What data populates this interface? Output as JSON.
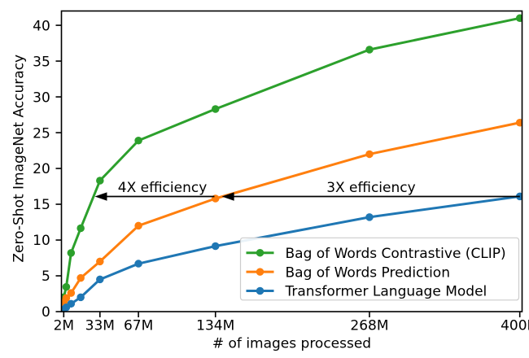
{
  "figure": {
    "background": "#ffffff",
    "text_color": "#000000",
    "spine_color": "#000000",
    "legend": {
      "border_color": "#cccccc",
      "background": "#ffffff",
      "location": "lower right"
    }
  },
  "chart_data": {
    "type": "line",
    "title": "",
    "xlabel": "# of images processed",
    "ylabel": "Zero-Shot ImageNet Accuracy",
    "xlim": [
      0,
      402
    ],
    "ylim": [
      0,
      42
    ],
    "grid": false,
    "xticks": {
      "values": [
        2,
        33.6,
        67.2,
        134.4,
        268.8,
        400
      ],
      "labels": [
        "2M",
        "33M",
        "67M",
        "134M",
        "268M",
        "400M"
      ]
    },
    "yticks": {
      "values": [
        0,
        5,
        10,
        15,
        20,
        25,
        30,
        35,
        40
      ],
      "labels": [
        "0",
        "5",
        "10",
        "15",
        "20",
        "25",
        "30",
        "35",
        "40"
      ]
    },
    "x": [
      2,
      4.2,
      8.4,
      16.8,
      33.6,
      67.2,
      134.4,
      268.8,
      400
    ],
    "series": [
      {
        "name": "Bag of Words Contrastive (CLIP)",
        "color": "#2ca02c",
        "marker": "circle",
        "values": [
          2.0,
          3.45,
          8.2,
          11.65,
          18.3,
          23.9,
          28.3,
          36.6,
          41.0
        ]
      },
      {
        "name": "Bag of Words Prediction",
        "color": "#ff7f0e",
        "marker": "circle",
        "values": [
          1.3,
          1.9,
          2.6,
          4.7,
          7.0,
          12.0,
          15.8,
          22.0,
          26.4
        ]
      },
      {
        "name": "Transformer Language Model",
        "color": "#1f77b4",
        "marker": "circle",
        "values": [
          0.3,
          0.6,
          1.1,
          2.0,
          4.5,
          6.7,
          9.15,
          13.2,
          16.1
        ]
      }
    ],
    "legend_entries": [
      "Bag of Words Contrastive (CLIP)",
      "Bag of Words Prediction",
      "Transformer Language Model"
    ],
    "annotations": [
      {
        "text": "4X efficiency",
        "text_x": 88.1,
        "text_y": 16.73,
        "arrow_y": 16.08,
        "tail_x": 133.5,
        "tip_x": 29.1,
        "color": "#000000"
      },
      {
        "text": "3X efficiency",
        "text_x": 270.2,
        "text_y": 16.73,
        "arrow_y": 16.08,
        "tail_x": 400.1,
        "tip_x": 140.0,
        "color": "#000000"
      }
    ]
  }
}
